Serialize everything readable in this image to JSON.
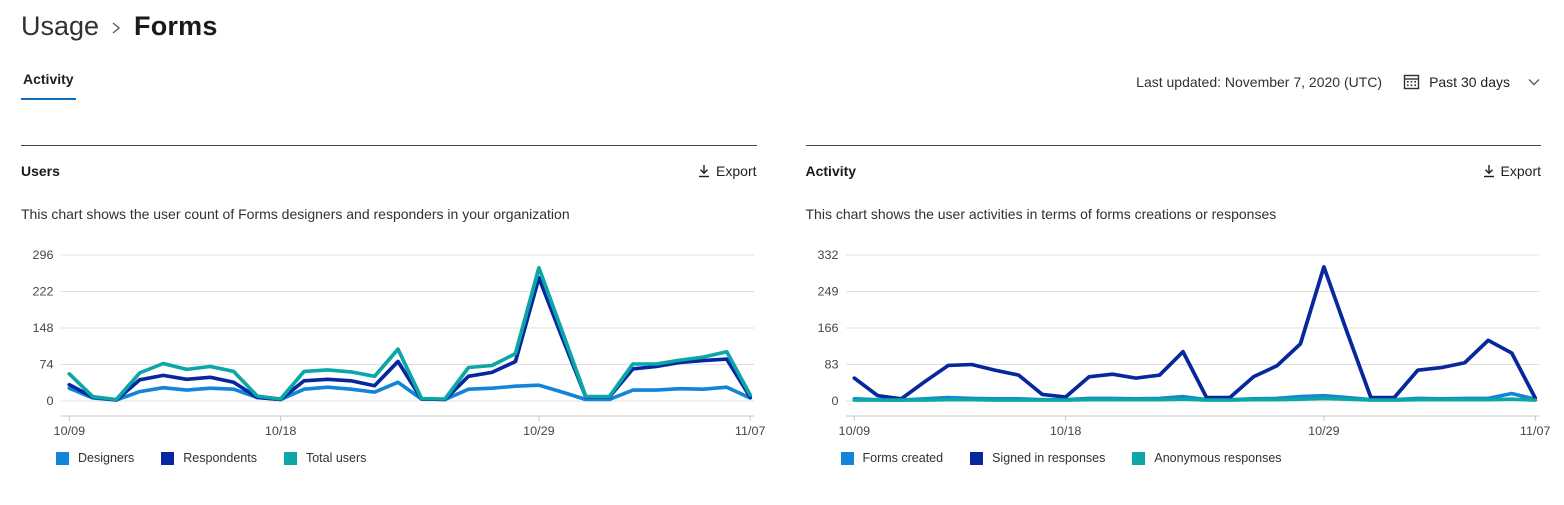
{
  "breadcrumb": {
    "parent": "Usage",
    "current": "Forms"
  },
  "tabs": [
    {
      "label": "Activity",
      "active": true
    }
  ],
  "header": {
    "last_updated": "Last updated: November 7, 2020 (UTC)",
    "date_filter": "Past 30 days"
  },
  "colors": {
    "accent": "#106ebe",
    "grid": "#e1dfdd",
    "axis": "#c8c6c4",
    "text": "#323130",
    "muted": "#605e5c",
    "series_blue": "#1285d8",
    "series_navy": "#06279e",
    "series_teal": "#0ba6a6"
  },
  "chart_data": [
    {
      "type": "line",
      "title": "Users",
      "export_label": "Export",
      "description": "This chart shows the user count of Forms designers and responders in your organization",
      "x": [
        "10/09",
        "10/10",
        "10/11",
        "10/12",
        "10/13",
        "10/14",
        "10/15",
        "10/16",
        "10/17",
        "10/18",
        "10/19",
        "10/20",
        "10/21",
        "10/22",
        "10/23",
        "10/24",
        "10/25",
        "10/26",
        "10/27",
        "10/28",
        "10/29",
        "10/30",
        "10/31",
        "11/01",
        "11/02",
        "11/03",
        "11/04",
        "11/05",
        "11/06",
        "11/07"
      ],
      "x_tick_indices": [
        0,
        9,
        20,
        29
      ],
      "y_ticks": [
        296,
        222,
        148,
        74,
        0
      ],
      "ylim": [
        0,
        296
      ],
      "grid": true,
      "legend_position": "bottom",
      "series": [
        {
          "name": "Designers",
          "color": "#1285d8",
          "values": [
            26,
            6,
            2,
            19,
            27,
            22,
            26,
            24,
            7,
            3,
            24,
            28,
            24,
            18,
            38,
            4,
            3,
            24,
            26,
            30,
            32,
            18,
            3,
            3,
            22,
            22,
            25,
            24,
            28,
            6
          ]
        },
        {
          "name": "Respondents",
          "color": "#06279e",
          "values": [
            33,
            8,
            2,
            43,
            52,
            44,
            48,
            38,
            7,
            3,
            41,
            44,
            41,
            31,
            80,
            4,
            3,
            50,
            58,
            80,
            250,
            128,
            8,
            8,
            65,
            70,
            78,
            82,
            85,
            8
          ]
        },
        {
          "name": "Total users",
          "color": "#0ba6a6",
          "values": [
            55,
            9,
            3,
            57,
            76,
            64,
            70,
            60,
            10,
            4,
            60,
            63,
            59,
            50,
            105,
            5,
            4,
            68,
            72,
            96,
            270,
            140,
            9,
            9,
            75,
            75,
            83,
            89,
            100,
            12
          ]
        }
      ]
    },
    {
      "type": "line",
      "title": "Activity",
      "export_label": "Export",
      "description": "This chart shows the user activities in terms of forms creations or responses",
      "x": [
        "10/09",
        "10/10",
        "10/11",
        "10/12",
        "10/13",
        "10/14",
        "10/15",
        "10/16",
        "10/17",
        "10/18",
        "10/19",
        "10/20",
        "10/21",
        "10/22",
        "10/23",
        "10/24",
        "10/25",
        "10/26",
        "10/27",
        "10/28",
        "10/29",
        "10/30",
        "10/31",
        "11/01",
        "11/02",
        "11/03",
        "11/04",
        "11/05",
        "11/06",
        "11/07"
      ],
      "x_tick_indices": [
        0,
        9,
        20,
        29
      ],
      "y_ticks": [
        332,
        249,
        166,
        83,
        0
      ],
      "ylim": [
        0,
        332
      ],
      "grid": true,
      "legend_position": "bottom",
      "series": [
        {
          "name": "Forms created",
          "color": "#1285d8",
          "values": [
            5,
            3,
            2,
            5,
            8,
            6,
            5,
            5,
            3,
            3,
            6,
            6,
            5,
            6,
            10,
            3,
            3,
            5,
            6,
            10,
            12,
            8,
            3,
            3,
            6,
            5,
            6,
            6,
            17,
            4
          ]
        },
        {
          "name": "Signed in responses",
          "color": "#06279e",
          "values": [
            52,
            12,
            5,
            44,
            81,
            83,
            70,
            59,
            15,
            9,
            55,
            61,
            52,
            59,
            112,
            8,
            8,
            55,
            80,
            130,
            305,
            155,
            8,
            8,
            70,
            76,
            87,
            138,
            109,
            7
          ]
        },
        {
          "name": "Anonymous responses",
          "color": "#0ba6a6",
          "values": [
            2,
            2,
            2,
            2,
            3,
            3,
            2,
            2,
            2,
            2,
            3,
            3,
            3,
            3,
            4,
            2,
            2,
            3,
            3,
            4,
            6,
            4,
            2,
            2,
            3,
            3,
            3,
            3,
            4,
            2
          ]
        }
      ]
    }
  ]
}
